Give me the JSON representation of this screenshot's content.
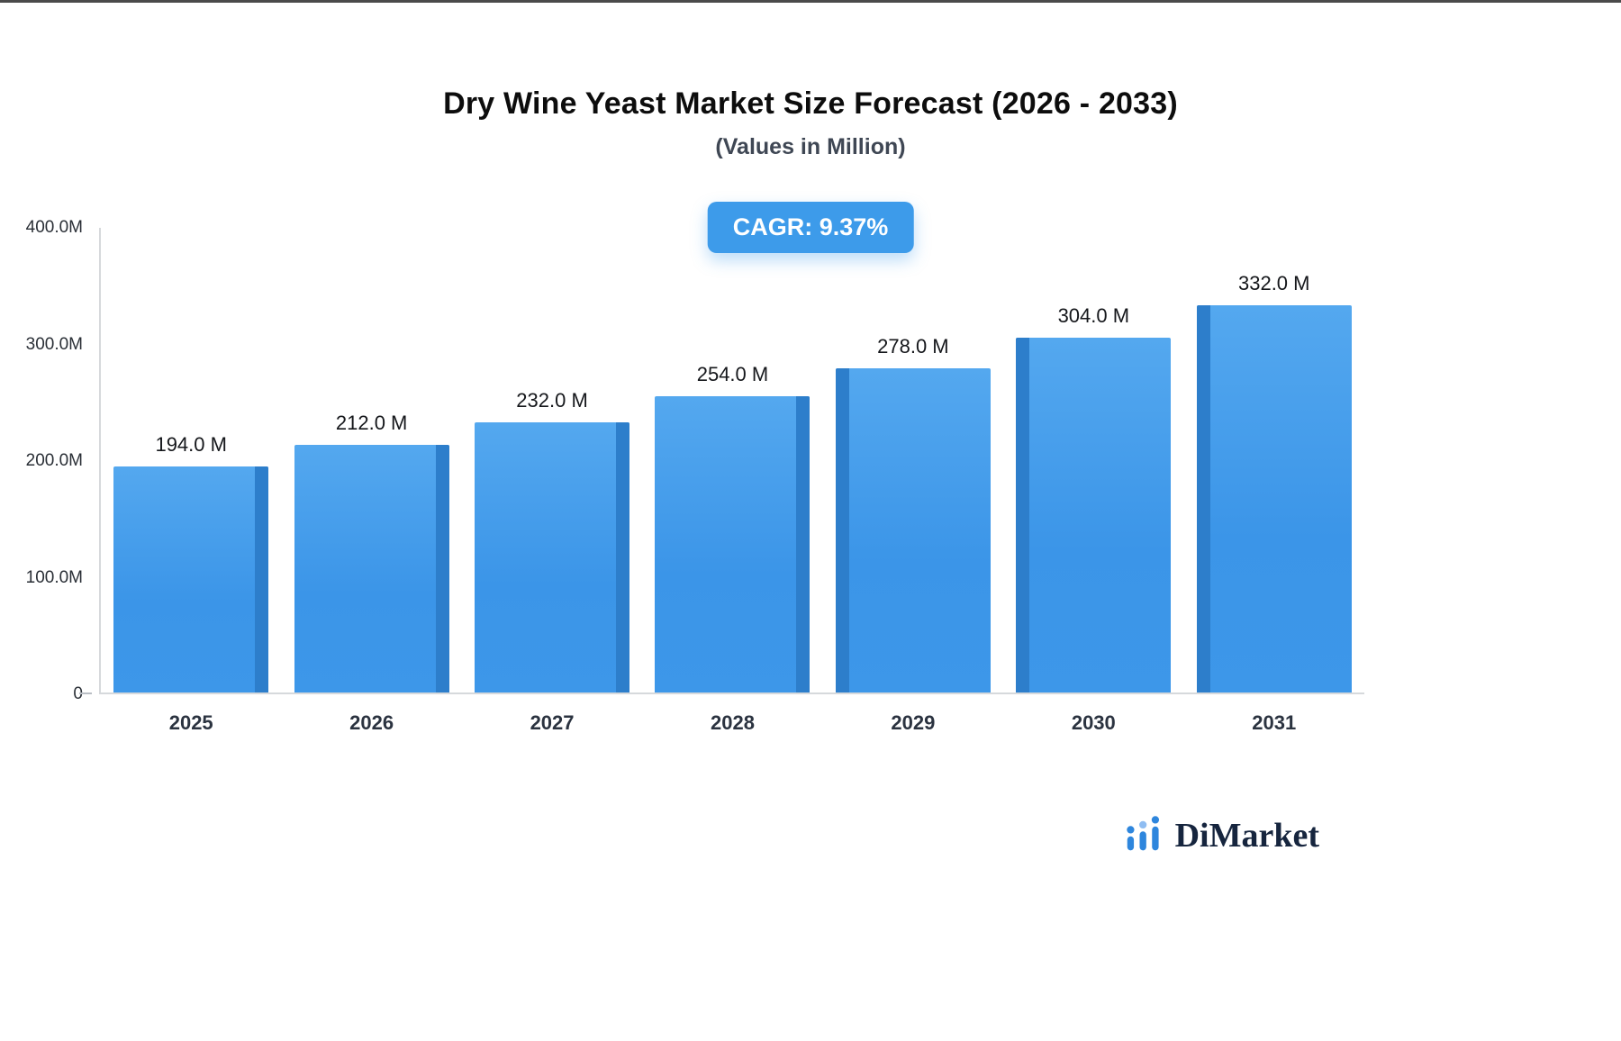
{
  "title": "Dry Wine Yeast Market Size Forecast (2026 - 2033)",
  "subtitle": "(Values in Million)",
  "cagr_label": "CAGR: 9.37%",
  "branding": {
    "name": "DiMarket",
    "icon": "bar-chart-logo-icon"
  },
  "colors": {
    "bar": "#3D9BEA",
    "bar_edge": "#2D7ECB",
    "badge": "#3D9BEA",
    "brand_text": "#16253E"
  },
  "chart_data": {
    "type": "bar",
    "categories": [
      "2025",
      "2026",
      "2027",
      "2028",
      "2029",
      "2030",
      "2031"
    ],
    "values": [
      194,
      212,
      232,
      254,
      278,
      304,
      332
    ],
    "value_labels": [
      "194.0 M",
      "212.0 M",
      "232.0 M",
      "254.0 M",
      "278.0 M",
      "304.0 M",
      "332.0 M"
    ],
    "title": "Dry Wine Yeast Market Size Forecast (2026 - 2033)",
    "subtitle": "(Values in Million)",
    "xlabel": "",
    "ylabel": "",
    "ylim": [
      0,
      400
    ],
    "yticks": [
      "400.0M",
      "300.0M",
      "200.0M",
      "100.0M",
      "0"
    ],
    "ytick_values": [
      400,
      300,
      200,
      100,
      0
    ],
    "grid": false,
    "legend": false,
    "annotation": "CAGR: 9.37%"
  }
}
